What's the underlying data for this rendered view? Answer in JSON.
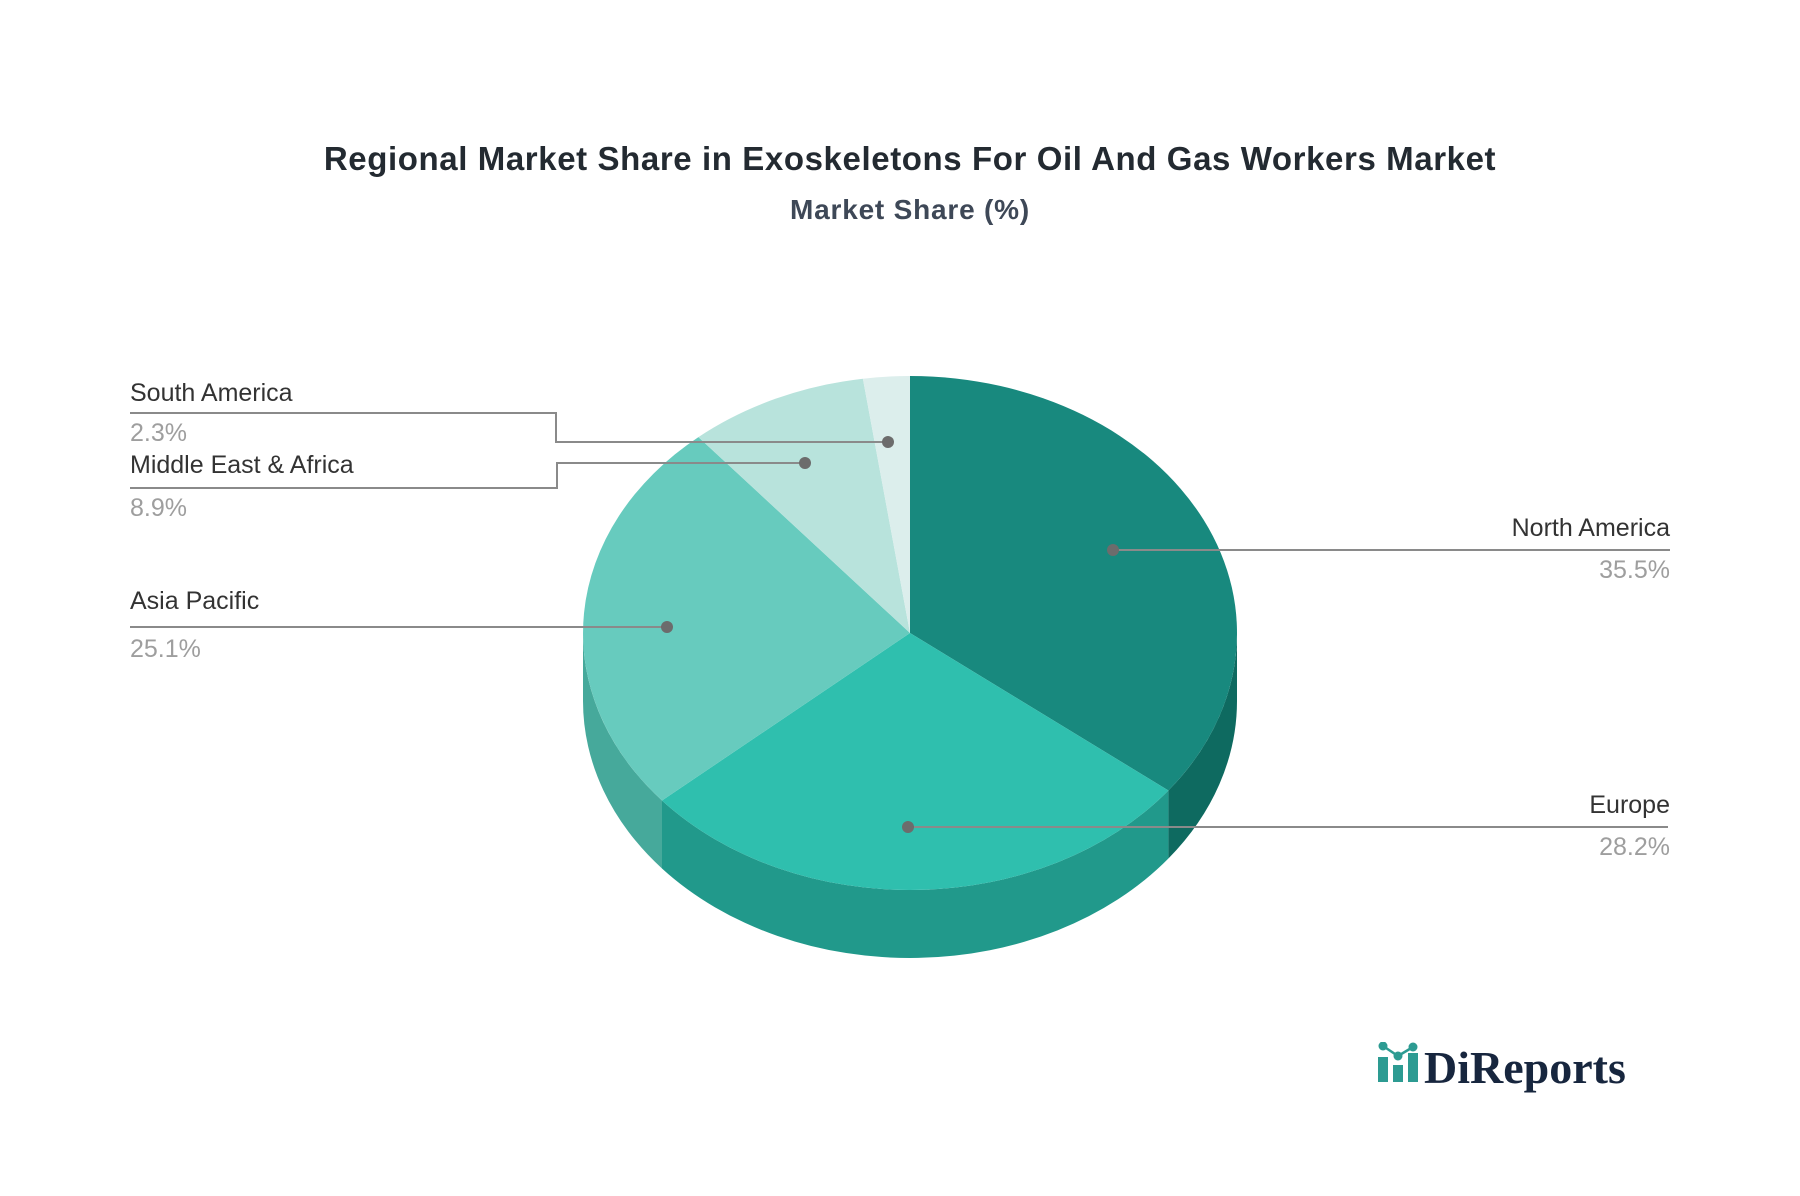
{
  "title": "Regional Market Share in Exoskeletons For Oil And Gas Workers Market",
  "subtitle": "Market Share (%)",
  "logo": {
    "text": "DiReports",
    "icon": "mini-bar-chart-icon",
    "icon_color": "#2d9b92",
    "text_color": "#17263e"
  },
  "style": {
    "background": "#ffffff",
    "title_color": "#232a31",
    "subtitle_color": "#3e4857",
    "label_color": "#333333",
    "value_color": "#9e9e9e",
    "leader_line_color": "#8a8a8a",
    "dot_color": "#6c6c6c"
  },
  "chart_data": {
    "type": "pie",
    "title": "Regional Market Share in Exoskeletons For Oil And Gas Workers Market",
    "subtitle": "Market Share (%)",
    "unit": "%",
    "style_3d": true,
    "start_angle_deg": 0,
    "direction": "clockwise",
    "legend_position": "callout-labels",
    "segments": [
      {
        "name": "North America",
        "value": 35.5,
        "display": "35.5%",
        "color": "#18897e",
        "side_color": "#0e6a60"
      },
      {
        "name": "Europe",
        "value": 28.2,
        "display": "28.2%",
        "color": "#2fbfae",
        "side_color": "#21998b"
      },
      {
        "name": "Asia Pacific",
        "value": 25.1,
        "display": "25.1%",
        "color": "#67cbbe",
        "side_color": "#46a99b"
      },
      {
        "name": "Middle East & Africa",
        "value": 8.9,
        "display": "8.9%",
        "color": "#b8e3dc",
        "side_color": "#8fc8bf"
      },
      {
        "name": "South America",
        "value": 2.3,
        "display": "2.3%",
        "color": "#dceeec",
        "side_color": "#bcdcd6"
      }
    ]
  }
}
